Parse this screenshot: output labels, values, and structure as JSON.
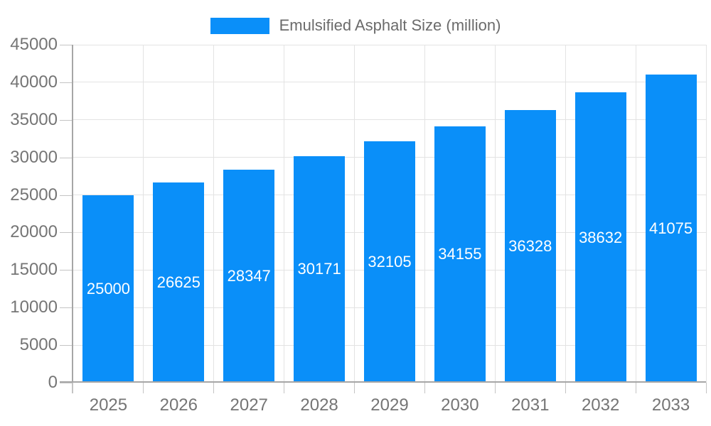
{
  "chart_data": {
    "type": "bar",
    "title": "",
    "xlabel": "",
    "ylabel": "",
    "legend": {
      "label": "Emulsified Asphalt Size (million)",
      "position": "top-center"
    },
    "categories": [
      "2025",
      "2026",
      "2027",
      "2028",
      "2029",
      "2030",
      "2031",
      "2032",
      "2033"
    ],
    "series": [
      {
        "name": "Emulsified Asphalt Size (million)",
        "values": [
          25000,
          26625,
          28347,
          30171,
          32105,
          34155,
          36328,
          38632,
          41075
        ]
      }
    ],
    "bar_value_labels": [
      "25000",
      "26625",
      "28347",
      "30171",
      "32105",
      "34155",
      "36328",
      "38632",
      "41075"
    ],
    "ylim": [
      0,
      45000
    ],
    "y_tick_step": 5000,
    "y_tick_values": [
      0,
      5000,
      10000,
      15000,
      20000,
      25000,
      30000,
      35000,
      40000,
      45000
    ],
    "y_tick_labels": [
      "0",
      "5000",
      "10000",
      "15000",
      "20000",
      "25000",
      "30000",
      "35000",
      "40000",
      "45000"
    ],
    "grid": true,
    "colors": {
      "bar": "#0a8ff9",
      "bar_value_text": "#ffffff",
      "axis_text": "#757575",
      "legend_text": "#6b6b6b",
      "gridline": "#e3e3e3",
      "axis_line": "#a6a6a6",
      "tick": "#c4c4c4",
      "background": "#ffffff"
    }
  }
}
